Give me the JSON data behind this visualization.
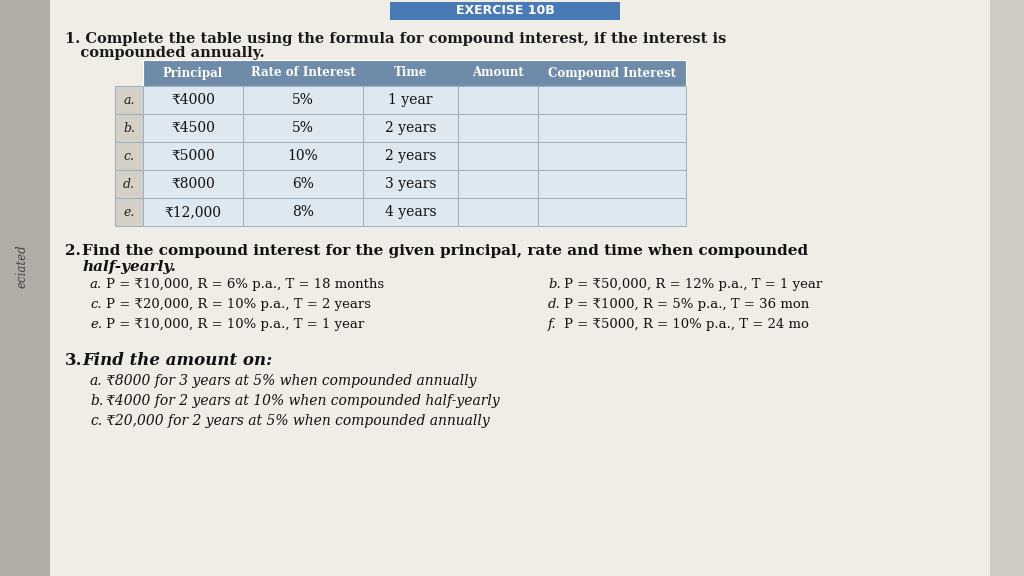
{
  "bg_color": "#c8c4bc",
  "page_color": "#e8e4dc",
  "page_color2": "#f0ede6",
  "left_bg": "#b0ada6",
  "table_header_bg": "#6e8caa",
  "table_header_text": "#ffffff",
  "table_cell_bg": "#dde8f0",
  "table_cell_bg2": "#cfdde8",
  "table_border": "#7a9ab8",
  "table_label_bg": "#c8c4bc",
  "text_color": "#1a1a1a",
  "exercise_bg": "#4a7ab5",
  "exercise_text": "#ffffff",
  "title_q1": "1. Complete the table using the formula for compound interest, if the interest is",
  "title_q1b": "   compounded annually.",
  "table_headers": [
    "Principal",
    "Rate of Interest",
    "Time",
    "Amount",
    "Compound Interest"
  ],
  "row_labels": [
    "a.",
    "b.",
    "c.",
    "d.",
    "e."
  ],
  "row_principal": [
    "₹4000",
    "₹4500",
    "₹5000",
    "₹8000",
    "₹12,000"
  ],
  "row_rate": [
    "5%",
    "5%",
    "10%",
    "6%",
    "8%"
  ],
  "row_time": [
    "1 year",
    "2 years",
    "2 years",
    "3 years",
    "4 years"
  ],
  "q2_header": "Find the compound interest for the given principal, rate and time when compounded",
  "q2_subheader": "half-yearly.",
  "q2_items_left": [
    "P = ₹10,000, R = 6% p.a., T = 18 months",
    "P = ₹20,000, R = 10% p.a., T = 2 years",
    "P = ₹10,000, R = 10% p.a., T = 1 year"
  ],
  "q2_labels_left": [
    "a.",
    "c.",
    "e."
  ],
  "q2_items_right": [
    "P = ₹50,000, R = 12% p.a., T = 1 year",
    "P = ₹1000, R = 5% p.a., T = 36 mon",
    "P = ₹5000, R = 10% p.a., T = 24 mo"
  ],
  "q2_labels_right": [
    "b.",
    "d.",
    "f."
  ],
  "q3_header": "Find the amount on:",
  "q3_items": [
    "₹8000 for 3 years at 5% when compounded annually",
    "₹4000 for 2 years at 10% when compounded half-yearly",
    "₹20,000 for 2 years at 5% when compounded annually"
  ],
  "q3_labels": [
    "a.",
    "b.",
    "c."
  ]
}
